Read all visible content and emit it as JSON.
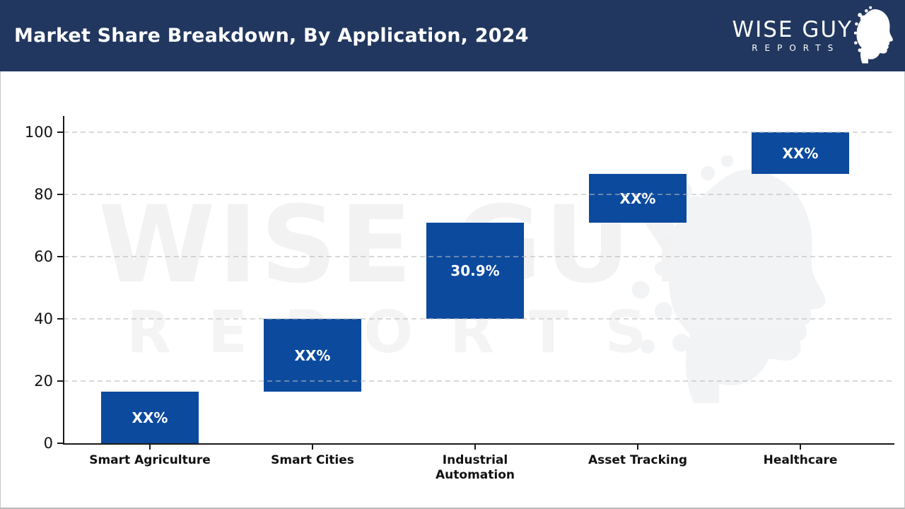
{
  "header": {
    "title": "Market Share Breakdown, By Application, 2024",
    "bg_color": "#21375F",
    "logo": {
      "line1": "WISE GUY",
      "line2": "REPORTS"
    }
  },
  "watermark": {
    "line1": "WISE GUY",
    "line2": "REPORTS"
  },
  "chart_data": {
    "type": "bar",
    "subtype": "waterfall",
    "title": "Market Share Breakdown, By Application, 2024",
    "categories": [
      "Smart Agriculture",
      "Smart Cities",
      "Industrial Automation",
      "Asset Tracking",
      "Healthcare"
    ],
    "segments": [
      {
        "category": "Smart Agriculture",
        "start": 0,
        "end": 16.5,
        "value": 16.5,
        "label": "XX%"
      },
      {
        "category": "Smart Cities",
        "start": 16.5,
        "end": 40.0,
        "value": 23.5,
        "label": "XX%"
      },
      {
        "category": "Industrial Automation",
        "start": 40.0,
        "end": 70.9,
        "value": 30.9,
        "label": "30.9%"
      },
      {
        "category": "Asset Tracking",
        "start": 70.9,
        "end": 86.5,
        "value": 15.6,
        "label": "XX%"
      },
      {
        "category": "Healthcare",
        "start": 86.5,
        "end": 100.0,
        "value": 13.5,
        "label": "XX%"
      }
    ],
    "xlabel": "",
    "ylabel": "",
    "ylim": [
      0,
      105
    ],
    "yticks": [
      0,
      20,
      40,
      60,
      80,
      100
    ],
    "grid": "horizontal-dashed",
    "legend": "none",
    "bar_color": "#0C4A9E",
    "bar_label_color": "#FFFFFF",
    "axis_color": "#1A1A1A",
    "grid_color": "#D8D8D8"
  }
}
